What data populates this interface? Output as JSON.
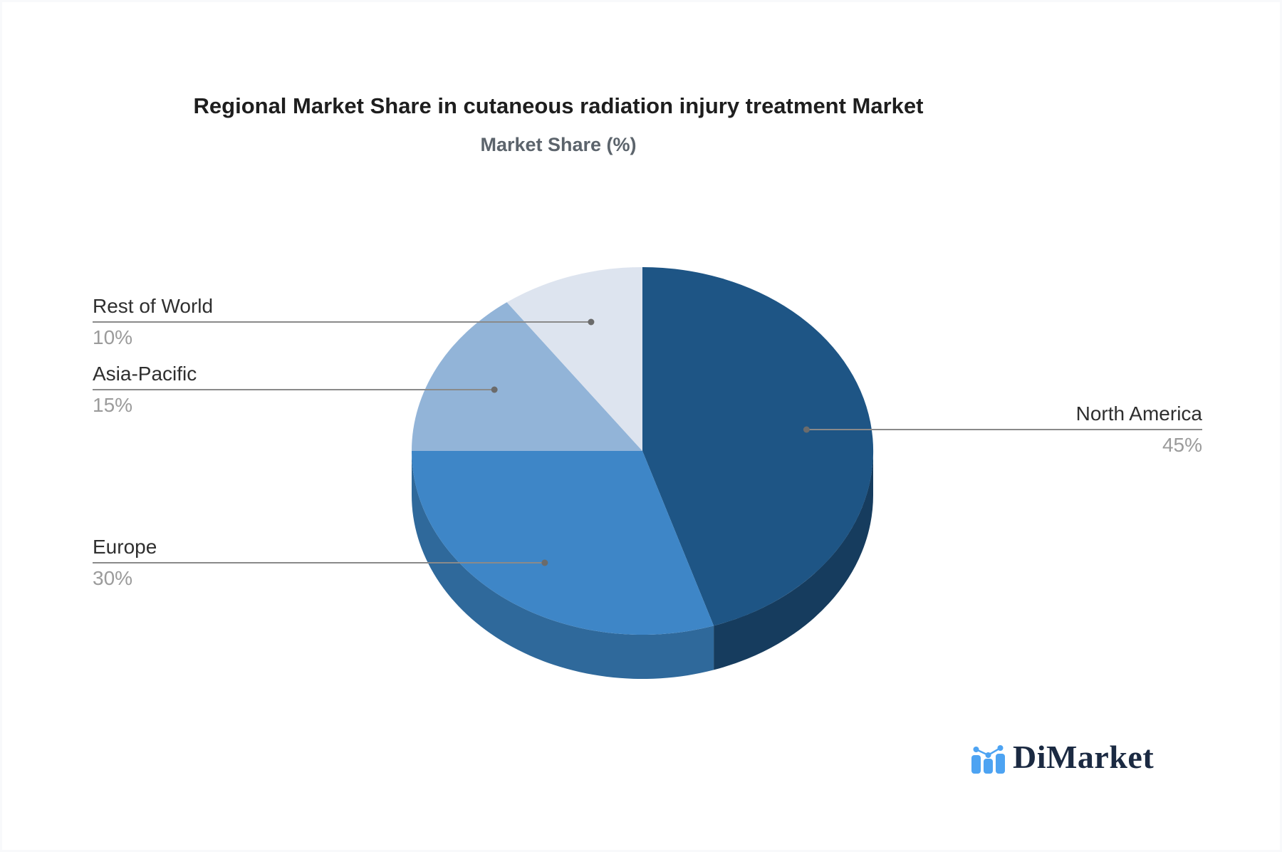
{
  "title": "Regional Market Share in cutaneous radiation injury treatment Market",
  "subtitle": "Market Share (%)",
  "chart_data": {
    "type": "pie",
    "title": "Regional Market Share in cutaneous radiation injury treatment Market",
    "subtitle": "Market Share (%)",
    "unit": "%",
    "effect_3d": true,
    "legend_position": "none",
    "labels_outside": true,
    "start_angle_deg": 0,
    "direction": "clockwise",
    "slices": [
      {
        "label": "North America",
        "value": 45,
        "pct": "45%",
        "color": "#1e5585",
        "side_color": "#163c5e"
      },
      {
        "label": "Europe",
        "value": 30,
        "pct": "30%",
        "color": "#3e86c7",
        "side_color": "#2f699b"
      },
      {
        "label": "Asia-Pacific",
        "value": 15,
        "pct": "15%",
        "color": "#92b4d8",
        "side_color": "#6d94bd"
      },
      {
        "label": "Rest of World",
        "value": 10,
        "pct": "10%",
        "color": "#dde4ef",
        "side_color": "#b3bfd2"
      }
    ],
    "connector_color": "#8a8a8a",
    "connector_dot_color": "#6b6b6b",
    "label_color": "#2f2f2f",
    "pct_color": "#9b9b9b"
  },
  "logo": {
    "text": "DiMarket",
    "icon": "bar-line-chart-icon",
    "icon_color": "#4da3f2",
    "text_color": "#1b2a42"
  }
}
